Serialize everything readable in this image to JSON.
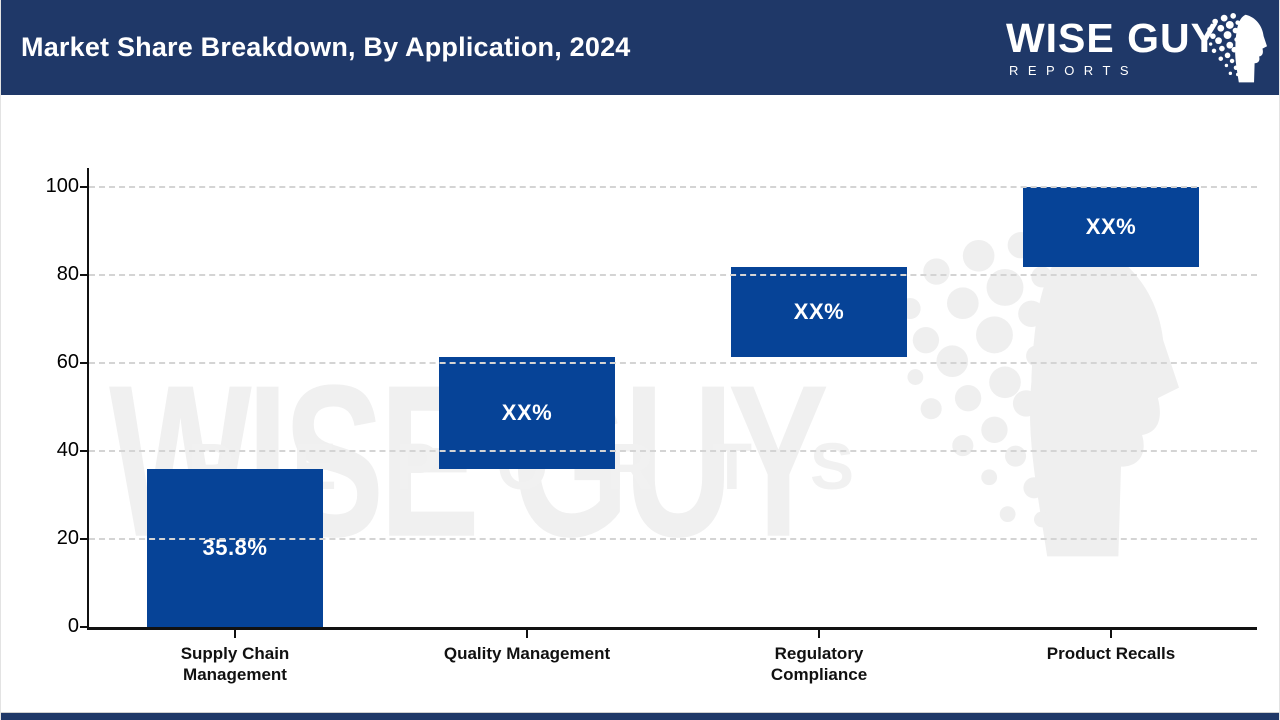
{
  "header": {
    "title": "Market Share Breakdown, By Application, 2024",
    "logo": {
      "wordmark": "WISE GUY",
      "subtitle": "REPORTS"
    }
  },
  "watermark": {
    "wordmark": "WISE GUY",
    "subtitle": "REPORTS"
  },
  "chart_data": {
    "type": "bar",
    "subtype": "waterfall",
    "title": "Market Share Breakdown, By Application, 2024",
    "categories": [
      "Supply Chain Management",
      "Quality Management",
      "Regulatory Compliance",
      "Product Recalls"
    ],
    "bars": [
      {
        "category": "Supply Chain Management",
        "display": "Supply Chain\nManagement",
        "start": 0,
        "end": 35.8,
        "label": "35.8%"
      },
      {
        "category": "Quality Management",
        "display": "Quality Management",
        "start": 35.8,
        "end": 61.4,
        "label": "XX%"
      },
      {
        "category": "Regulatory Compliance",
        "display": "Regulatory\nCompliance",
        "start": 61.4,
        "end": 81.8,
        "label": "XX%"
      },
      {
        "category": "Product Recalls",
        "display": "Product Recalls",
        "start": 81.8,
        "end": 100,
        "label": "XX%"
      }
    ],
    "ylim": [
      0,
      100
    ],
    "yticks": [
      0,
      20,
      40,
      60,
      80,
      100
    ],
    "grid": "horizontal-dashed",
    "legend": "none",
    "bar_color": "#064397",
    "bar_label_color": "#ffffff"
  },
  "colors": {
    "header_bg": "#1f3868",
    "footer_bg": "#1f3868",
    "bar": "#064397",
    "grid": "#d4d4d4",
    "axis": "#111111",
    "watermark": "#f0f0f0",
    "title_text": "#ffffff"
  }
}
